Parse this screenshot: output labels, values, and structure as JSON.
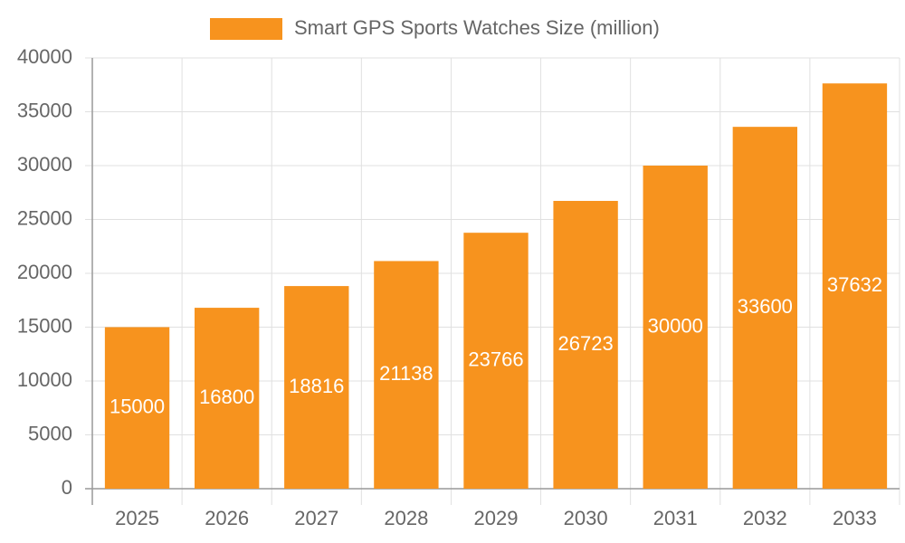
{
  "chart_data": {
    "type": "bar",
    "categories": [
      "2025",
      "2026",
      "2027",
      "2028",
      "2029",
      "2030",
      "2031",
      "2032",
      "2033"
    ],
    "series": [
      {
        "name": "Smart GPS Sports Watches Size (million)",
        "color": "#f7931e",
        "values": [
          15000,
          16800,
          18816,
          21138,
          23766,
          26723,
          30000,
          33600,
          37632
        ]
      }
    ],
    "ylim": [
      0,
      40000
    ],
    "yticks": [
      0,
      5000,
      10000,
      15000,
      20000,
      25000,
      30000,
      35000,
      40000
    ],
    "grid": true,
    "legend": "top"
  }
}
